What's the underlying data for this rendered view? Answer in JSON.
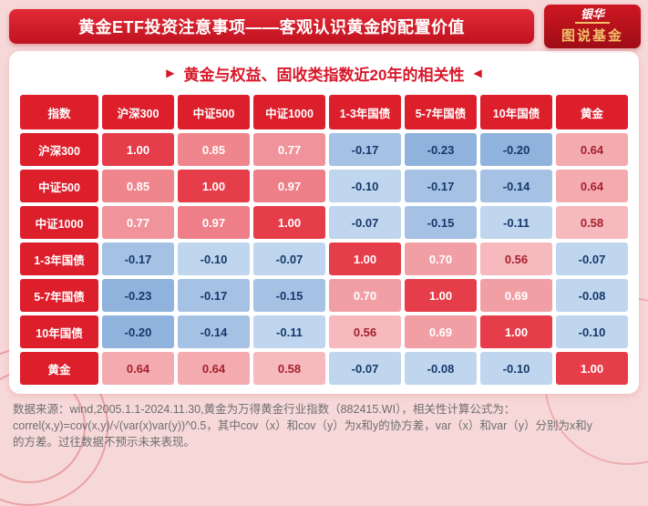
{
  "page": {
    "background": "#f7d8d8",
    "accent_red": "#d7182a"
  },
  "header": {
    "title": "黄金ETF投资注意事项——客观认识黄金的配置价值",
    "logo": {
      "brand": "银华",
      "series": "图说基金"
    }
  },
  "subtitle": {
    "left_icon": "▶",
    "text": "黄金与权益、固收类指数近20年的相关性",
    "right_icon": "◀"
  },
  "chart_data": {
    "type": "heatmap",
    "title": "黄金与权益、固收类指数近20年的相关性",
    "corner_label": "指数",
    "columns": [
      "沪深300",
      "中证500",
      "中证1000",
      "1-3年国债",
      "5-7年国债",
      "10年国债",
      "黄金"
    ],
    "rows": [
      "沪深300",
      "中证500",
      "中证1000",
      "1-3年国债",
      "5-7年国债",
      "10年国债",
      "黄金"
    ],
    "values": [
      [
        1.0,
        0.85,
        0.77,
        -0.17,
        -0.23,
        -0.2,
        0.64
      ],
      [
        0.85,
        1.0,
        0.97,
        -0.1,
        -0.17,
        -0.14,
        0.64
      ],
      [
        0.77,
        0.97,
        1.0,
        -0.07,
        -0.15,
        -0.11,
        0.58
      ],
      [
        -0.17,
        -0.1,
        -0.07,
        1.0,
        0.7,
        0.56,
        -0.07
      ],
      [
        -0.23,
        -0.17,
        -0.15,
        0.7,
        1.0,
        0.69,
        -0.08
      ],
      [
        -0.2,
        -0.14,
        -0.11,
        0.56,
        0.69,
        1.0,
        -0.1
      ],
      [
        0.64,
        0.64,
        0.58,
        -0.07,
        -0.08,
        -0.1,
        1.0
      ]
    ],
    "value_range": [
      -1,
      1
    ],
    "legend_position": "none",
    "grid": false
  },
  "heatmap_colors": {
    "header_bg": "#dd1f2c",
    "positive": [
      {
        "min": 0.99,
        "bg": "#e63d4a",
        "fg": "#ffffff"
      },
      {
        "min": 0.9,
        "bg": "#ee7e87",
        "fg": "#ffffff"
      },
      {
        "min": 0.8,
        "bg": "#ef858d",
        "fg": "#ffffff"
      },
      {
        "min": 0.72,
        "bg": "#f0939a",
        "fg": "#ffffff"
      },
      {
        "min": 0.65,
        "bg": "#f19fa5",
        "fg": "#ffffff"
      },
      {
        "min": 0.6,
        "bg": "#f4abb0",
        "fg": "#a6212e"
      },
      {
        "min": 0.0,
        "bg": "#f6b9bd",
        "fg": "#a6212e"
      }
    ],
    "negative": [
      {
        "min": 0.19,
        "bg": "#8fb3dc",
        "fg": "#16386b"
      },
      {
        "min": 0.13,
        "bg": "#a5c2e5",
        "fg": "#16386b"
      },
      {
        "min": 0.0,
        "bg": "#bfd6ee",
        "fg": "#16386b"
      }
    ]
  },
  "footer": {
    "lines": [
      "数据来源：wind,2005.1.1-2024.11.30,黄金为万得黄金行业指数（882415.WI），相关性计算公式为：",
      "correl(x,y)=cov(x,y)/√(var(x)var(y))^0.5，其中cov（x）和cov（y）为x和y的协方差，var（x）和var（y）分别为x和y",
      "的方差。过往数据不预示未来表现。"
    ]
  }
}
